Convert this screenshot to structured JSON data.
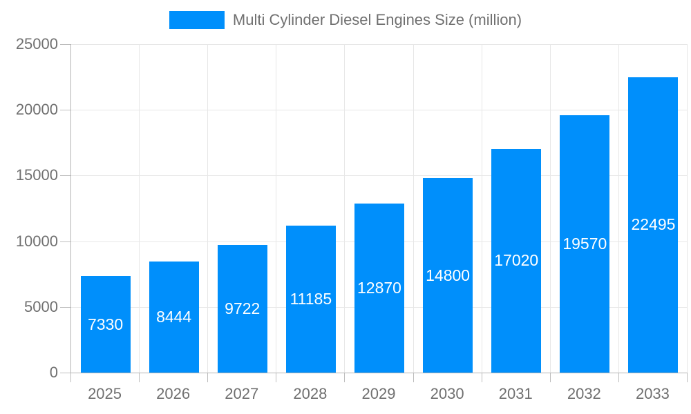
{
  "legend": {
    "label": "Multi Cylinder Diesel Engines Size (million)",
    "swatch_color": "#008FFB",
    "position": "top"
  },
  "chart_data": {
    "type": "bar",
    "title": "",
    "xlabel": "",
    "ylabel": "",
    "categories": [
      "2025",
      "2026",
      "2027",
      "2028",
      "2029",
      "2030",
      "2031",
      "2032",
      "2033"
    ],
    "series": [
      {
        "name": "Multi Cylinder Diesel Engines Size (million)",
        "color": "#008FFB",
        "values": [
          7330,
          8444,
          9722,
          11185,
          12870,
          14800,
          17020,
          19570,
          22495
        ]
      }
    ],
    "ylim": [
      0,
      25000
    ],
    "yticks": [
      0,
      5000,
      10000,
      15000,
      20000,
      25000
    ],
    "grid": true,
    "legend_position": "top",
    "value_labels": {
      "position": "center",
      "color": "#ffffff"
    },
    "colors": {
      "bar": "#008FFB",
      "grid": "#e7e7e7",
      "axis": "#b3b3b3",
      "tick": "#bdbdbd",
      "axis_text": "#707070",
      "background": "#ffffff"
    }
  }
}
